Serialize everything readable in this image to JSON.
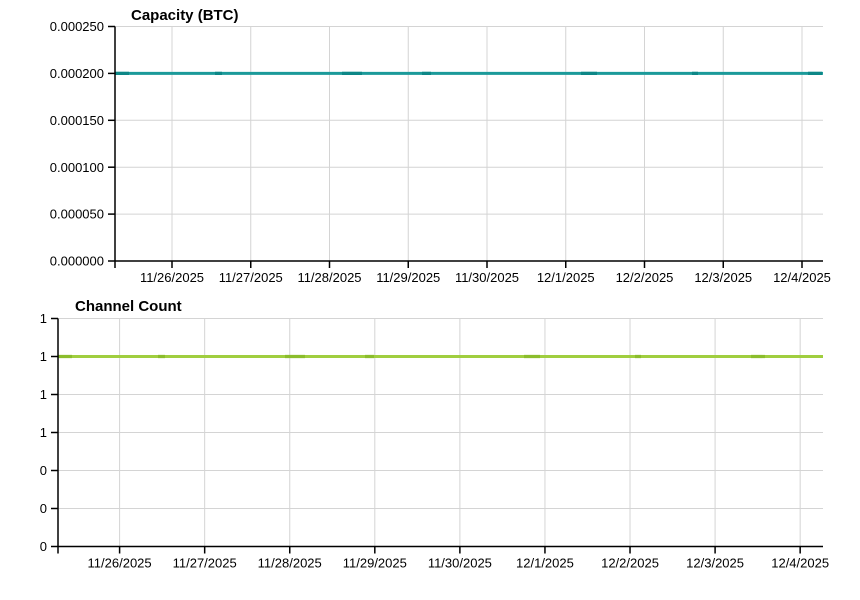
{
  "page": {
    "background_color": "#ffffff",
    "grid_color": "#d4d4d4",
    "axis_color": "#000000",
    "text_color": "#000000"
  },
  "chart_data": [
    {
      "type": "line",
      "title": "Capacity (BTC)",
      "xlabel": "",
      "ylabel": "",
      "x": [
        "11/26/2025",
        "11/27/2025",
        "11/28/2025",
        "11/29/2025",
        "11/30/2025",
        "12/1/2025",
        "12/2/2025",
        "12/3/2025",
        "12/4/2025"
      ],
      "series": [
        {
          "name": "Capacity (BTC)",
          "values": [
            0.0002,
            0.0002,
            0.0002,
            0.0002,
            0.0002,
            0.0002,
            0.0002,
            0.0002,
            0.0002
          ]
        }
      ],
      "ylim": [
        0,
        0.00025
      ],
      "y_tick_labels": [
        "0.000250",
        "0.000200",
        "0.000150",
        "0.000100",
        "0.000050",
        "0.000000"
      ],
      "grid": true,
      "legend": "none",
      "line_color": "#1b9a9a",
      "marker_color": "#0d8787",
      "line_value": 0.0002
    },
    {
      "type": "line",
      "title": "Channel Count",
      "xlabel": "",
      "ylabel": "",
      "x": [
        "11/26/2025",
        "11/27/2025",
        "11/28/2025",
        "11/29/2025",
        "11/30/2025",
        "12/1/2025",
        "12/2/2025",
        "12/3/2025",
        "12/4/2025"
      ],
      "series": [
        {
          "name": "Channel Count",
          "values": [
            1,
            1,
            1,
            1,
            1,
            1,
            1,
            1,
            1
          ]
        }
      ],
      "ylim": [
        0,
        1.2
      ],
      "y_tick_labels": [
        "1",
        "1",
        "1",
        "1",
        "0",
        "0",
        "0"
      ],
      "grid": true,
      "legend": "none",
      "line_color": "#a0ce3f",
      "marker_color": "#8bbd2c",
      "line_value": 1
    }
  ]
}
